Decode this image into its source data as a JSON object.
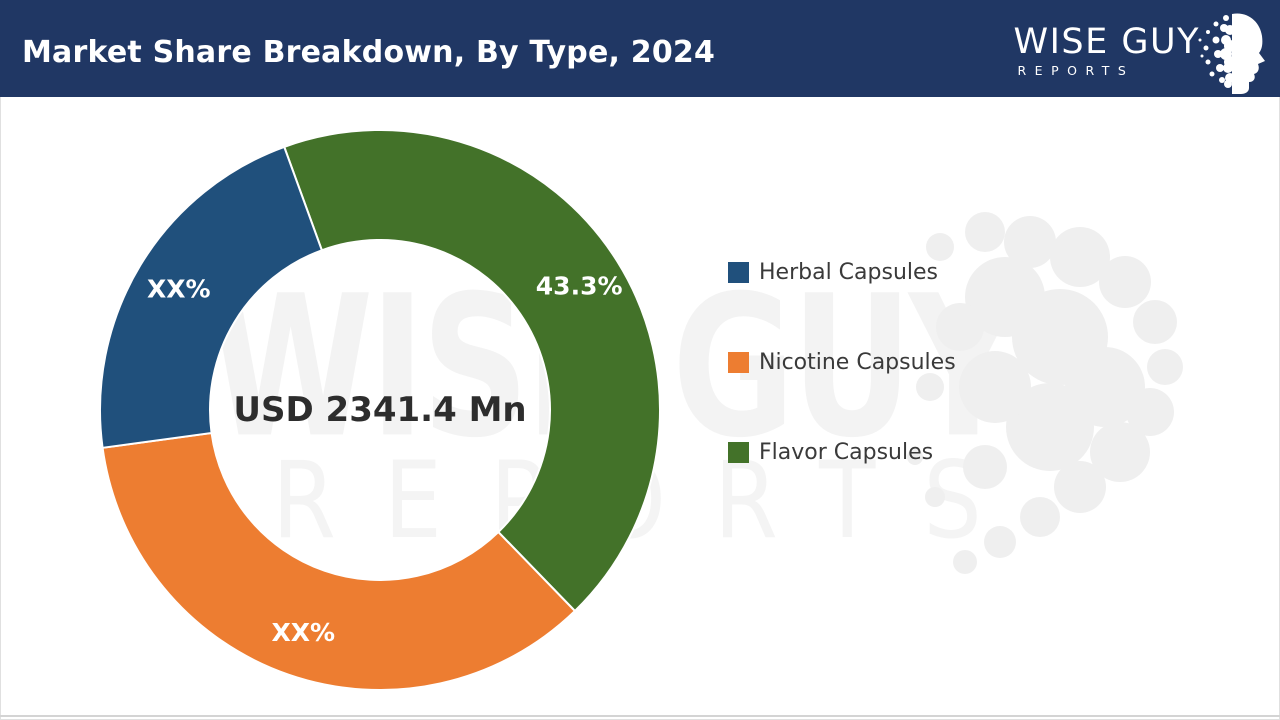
{
  "header": {
    "title": "Market Share Breakdown, By Type, 2024",
    "bg_color": "#203764",
    "logo": {
      "line1": "WISE GUY",
      "line2": "REPORTS"
    }
  },
  "watermark": {
    "line1": "WISE GUY",
    "line2": "REPORTS"
  },
  "chart_data": {
    "type": "pie",
    "subtype": "donut",
    "title": "Market Share Breakdown, By Type, 2024",
    "center_label": "USD 2341.4 Mn",
    "start_angle_deg": -20,
    "legend_position": "right",
    "slices": [
      {
        "name": "Flavor Capsules",
        "value": 43.3,
        "label": "43.3%",
        "color": "#437229"
      },
      {
        "name": "Nicotine Capsules",
        "value": 35.1,
        "label": "XX%",
        "color": "#ED7D31"
      },
      {
        "name": "Herbal Capsules",
        "value": 21.6,
        "label": "XX%",
        "color": "#20507C"
      }
    ]
  },
  "legend": {
    "items": [
      {
        "label": "Herbal Capsules",
        "color": "#20507C"
      },
      {
        "label": "Nicotine Capsules",
        "color": "#ED7D31"
      },
      {
        "label": "Flavor Capsules",
        "color": "#437229"
      }
    ]
  }
}
